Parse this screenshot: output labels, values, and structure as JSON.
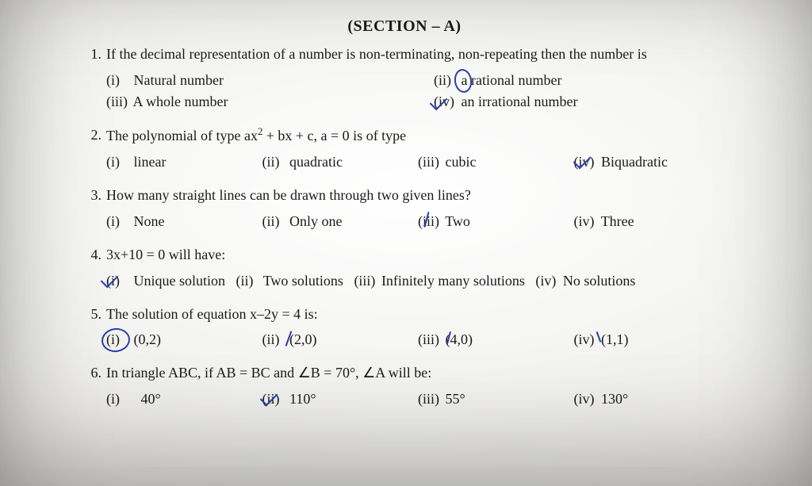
{
  "section_title": "(SECTION – A)",
  "questions": [
    {
      "num": "1.",
      "stem": "If the decimal representation of a number is non-terminating, non-repeating then the number is",
      "layout": "grid2",
      "options": [
        {
          "label": "(i)",
          "text": "Natural number"
        },
        {
          "label": "(ii)",
          "text": "a rational number"
        },
        {
          "label": "(iii)",
          "text": "A whole number"
        },
        {
          "label": "(iv)",
          "text": "an irrational number"
        }
      ]
    },
    {
      "num": "2.",
      "stem_html": "The polynomial of type ax<sup>2</sup> + bx + c, a = 0 is of type",
      "layout": "row4",
      "options": [
        {
          "label": "(i)",
          "text": "linear"
        },
        {
          "label": "(ii)",
          "text": "quadratic"
        },
        {
          "label": "(iii)",
          "text": "cubic"
        },
        {
          "label": "(iv)",
          "text": "Biquadratic"
        }
      ]
    },
    {
      "num": "3.",
      "stem": "How many straight lines can be drawn through two given lines?",
      "layout": "row4",
      "options": [
        {
          "label": "(i)",
          "text": "None"
        },
        {
          "label": "(ii)",
          "text": "Only one"
        },
        {
          "label": "(iii)",
          "text": "Two"
        },
        {
          "label": "(iv)",
          "text": "Three"
        }
      ]
    },
    {
      "num": "4.",
      "stem": "3x+10 = 0 will have:",
      "layout": "inline",
      "options": [
        {
          "label": "(i)",
          "text": "Unique solution"
        },
        {
          "label": "(ii)",
          "text": "Two solutions"
        },
        {
          "label": "(iii)",
          "text": "Infinitely many solutions"
        },
        {
          "label": "(iv)",
          "text": "No solutions"
        }
      ]
    },
    {
      "num": "5.",
      "stem": "The solution of equation x–2y = 4 is:",
      "layout": "row4",
      "options": [
        {
          "label": "(i)",
          "text": "(0,2)"
        },
        {
          "label": "(ii)",
          "text": "(2,0)"
        },
        {
          "label": "(iii)",
          "text": "(4,0)"
        },
        {
          "label": "(iv)",
          "text": "(1,1)"
        }
      ]
    },
    {
      "num": "6.",
      "stem": "In triangle ABC, if AB = BC and ∠B = 70°, ∠A will be:",
      "layout": "row4",
      "options": [
        {
          "label": "(i)",
          "text": "40°"
        },
        {
          "label": "(ii)",
          "text": "110°"
        },
        {
          "label": "(iii)",
          "text": "55°"
        },
        {
          "label": "(iv)",
          "text": "130°"
        }
      ]
    }
  ],
  "pen_color": "#2b3ea8",
  "background_colors": {
    "center": "#ffffff",
    "mid": "#f4f4f2",
    "edge": "#dedcd8"
  },
  "text_color": "#1a1a1a",
  "font_family": "Times New Roman",
  "title_fontsize_pt": 15,
  "body_fontsize_pt": 13.5
}
